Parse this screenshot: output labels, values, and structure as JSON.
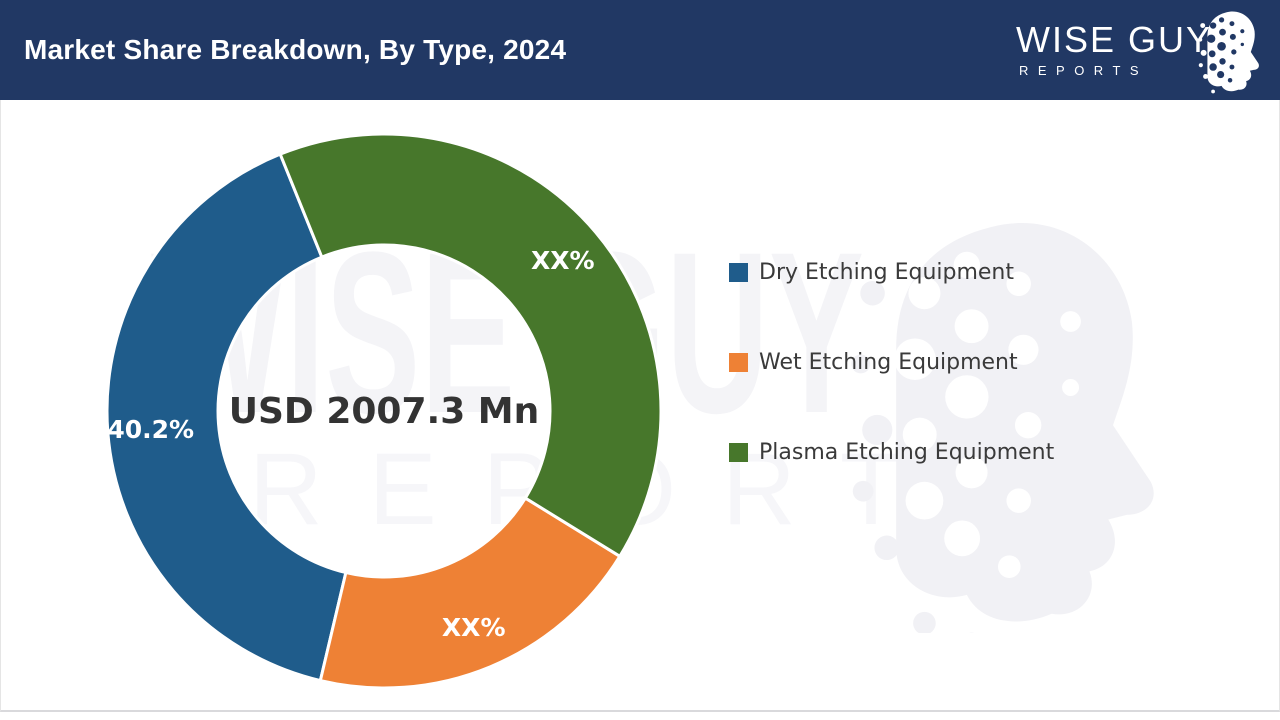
{
  "header": {
    "title": "Market Share Breakdown, By Type, 2024",
    "bg_color": "#213864",
    "logo": {
      "line1": "WISE GUY",
      "line2": "REPORTS"
    }
  },
  "watermark": {
    "line1": "WISE GUY",
    "line2": "REPORTS"
  },
  "chart_data": {
    "type": "pie",
    "subtype": "donut",
    "title": "Market Share Breakdown, By Type, 2024",
    "center_label": "USD 2007.3 Mn",
    "start_angle_deg": 112,
    "direction": "counterclockwise",
    "legend_position": "right",
    "segments": [
      {
        "label": "Dry Etching Equipment",
        "value_pct": 40.2,
        "display_pct": "40.2%",
        "color": "#1F5C8B"
      },
      {
        "label": "Wet Etching Equipment",
        "value_pct": 19.9,
        "display_pct": "XX%",
        "color": "#EE8135"
      },
      {
        "label": "Plasma Etching Equipment",
        "value_pct": 39.9,
        "display_pct": "XX%",
        "color": "#47772B"
      }
    ]
  }
}
